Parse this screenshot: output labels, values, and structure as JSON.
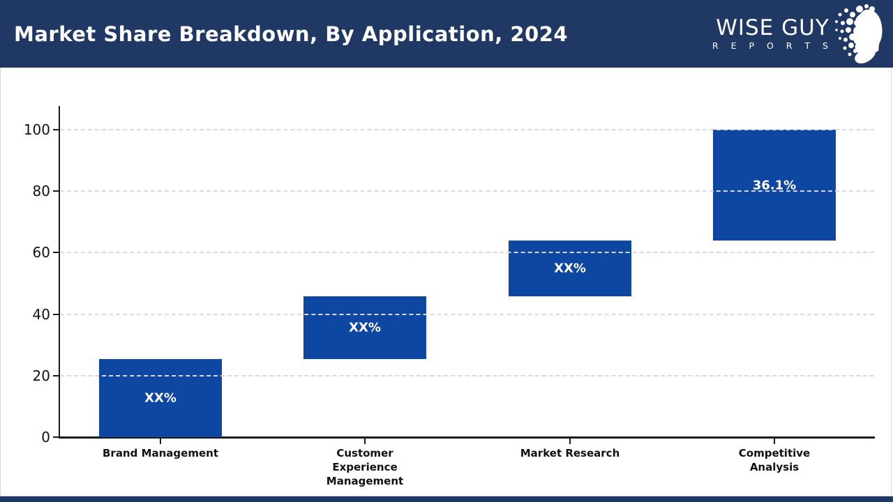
{
  "header": {
    "title": "Market Share Breakdown, By Application, 2024",
    "logo": {
      "line1": "WISE GUY",
      "line2": "R E P O R T S"
    }
  },
  "watermark": {
    "line1": "WISE GUY",
    "line2": "R E P O R T S"
  },
  "chart_data": {
    "type": "bar",
    "subtype": "waterfall-floating-segments",
    "title": "Market Share Breakdown, By Application, 2024",
    "categories": [
      "Brand Management",
      "Customer Experience Management",
      "Market Research",
      "Competitive Analysis"
    ],
    "categories_display": [
      "Brand Management",
      "Customer\nExperience\nManagement",
      "Market Research",
      "Competitive\nAnalysis"
    ],
    "segments": [
      {
        "category": "Brand Management",
        "start": 0,
        "end": 25.4,
        "label": "XX%"
      },
      {
        "category": "Customer Experience Management",
        "start": 25.4,
        "end": 45.8,
        "label": "XX%"
      },
      {
        "category": "Market Research",
        "start": 45.8,
        "end": 63.9,
        "label": "XX%"
      },
      {
        "category": "Competitive Analysis",
        "start": 63.9,
        "end": 100,
        "label": "36.1%"
      }
    ],
    "ylim": [
      0,
      100
    ],
    "yticks": [
      0,
      20,
      40,
      60,
      80,
      100
    ],
    "xlabel": "",
    "ylabel": "",
    "grid": "horizontal-dashed",
    "legend": "none",
    "bar_color": "#0d47a1"
  },
  "colors": {
    "header_bg": "#1f3864",
    "bar": "#0d47a1",
    "gridline": "#dadada",
    "axis": "#1a1a1a",
    "watermark": "#f2f2f2",
    "bar_label": "#ffffff",
    "title_text": "#ffffff"
  }
}
